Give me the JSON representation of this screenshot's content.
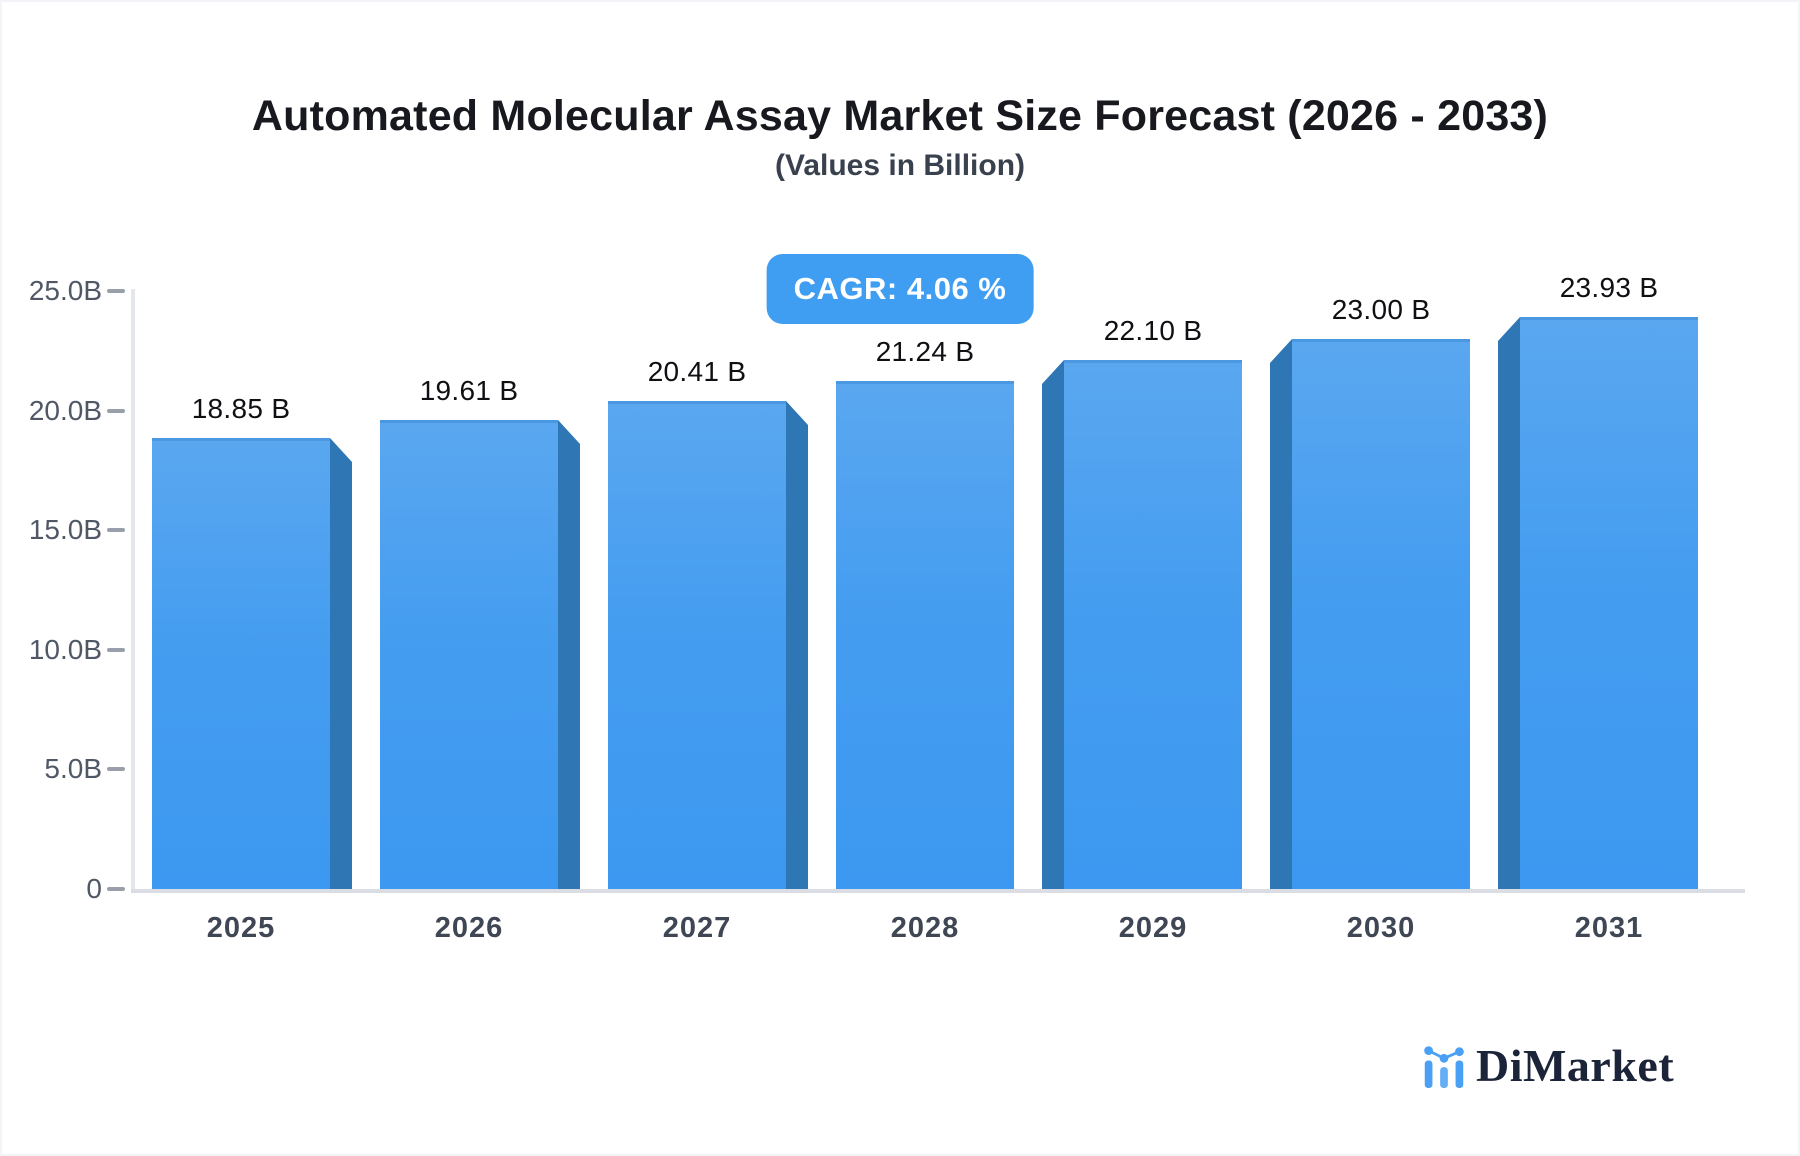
{
  "header": {
    "title": "Automated Molecular Assay Market Size Forecast (2026 - 2033)",
    "subtitle": "(Values in Billion)"
  },
  "chart_data": {
    "type": "bar",
    "title": "Automated Molecular Assay Market Size Forecast (2026 - 2033)",
    "subtitle": "(Values in Billion)",
    "cagr_label": "CAGR: 4.06 %",
    "categories": [
      "2025",
      "2026",
      "2027",
      "2028",
      "2029",
      "2030",
      "2031"
    ],
    "values": [
      18.85,
      19.61,
      20.41,
      21.24,
      22.1,
      23.0,
      23.93
    ],
    "value_labels": [
      "18.85 B",
      "19.61 B",
      "20.41 B",
      "21.24 B",
      "22.10 B",
      "23.00 B",
      "23.93 B"
    ],
    "unit": "Billion",
    "y_ticks": [
      {
        "label": "0",
        "value": 0
      },
      {
        "label": "5.0B",
        "value": 5
      },
      {
        "label": "10.0B",
        "value": 10
      },
      {
        "label": "15.0B",
        "value": 15
      },
      {
        "label": "20.0B",
        "value": 20
      },
      {
        "label": "25.0B",
        "value": 25
      }
    ],
    "ylim": [
      0,
      25
    ],
    "grid": false,
    "legend": false,
    "colors": {
      "bar_face_top": "#5aa7f0",
      "bar_face_bottom": "#3c98f0",
      "bar_side": "#2f76b5",
      "bar_top_edge": "#4a97e2",
      "badge_background": "#3f9df2",
      "badge_text": "#ffffff",
      "axis_line": "#e3e6eb",
      "baseline": "#dadde3"
    }
  },
  "logo": {
    "text": "DiMarket",
    "icon": "bar-chart-logo-icon"
  }
}
